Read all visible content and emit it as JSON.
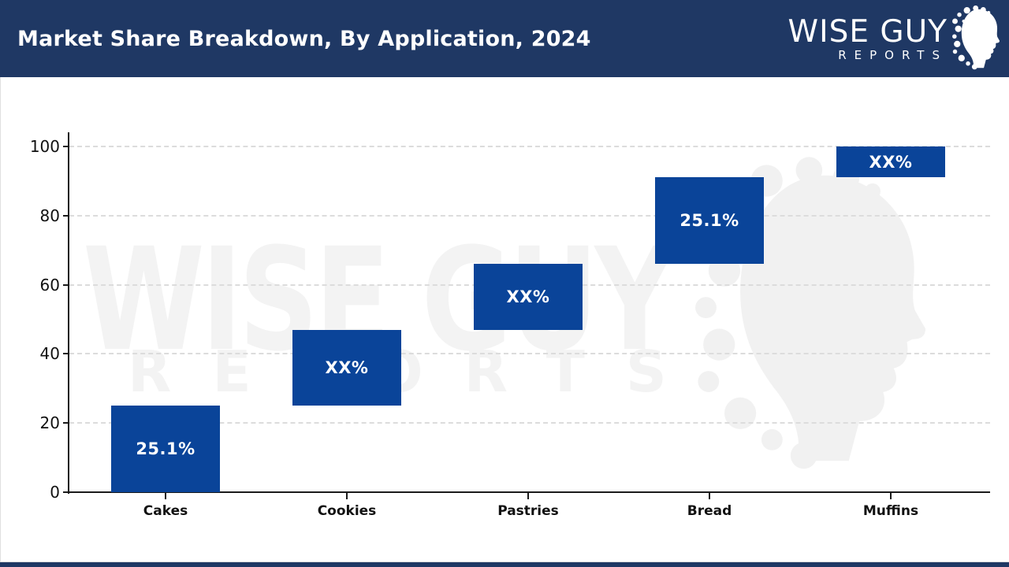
{
  "header": {
    "title": "Market Share Breakdown, By Application, 2024",
    "bg_color": "#1f3864",
    "logo": {
      "wordmark": "WISE GUY",
      "subtext": "REPORTS"
    }
  },
  "watermark": {
    "wordmark": "WISE GUY",
    "subtext": "REPORTS"
  },
  "chart_data": {
    "type": "bar",
    "variant": "floating-waterfall-percentage",
    "title": "Market Share Breakdown, By Application, 2024",
    "categories": [
      "Cakes",
      "Cookies",
      "Pastries",
      "Bread",
      "Muffins"
    ],
    "segments": [
      {
        "category": "Cakes",
        "start": 0,
        "end": 25.1,
        "label": "25.1%"
      },
      {
        "category": "Cookies",
        "start": 25.1,
        "end": 47.0,
        "label": "XX%"
      },
      {
        "category": "Pastries",
        "start": 47.0,
        "end": 66.0,
        "label": "XX%"
      },
      {
        "category": "Bread",
        "start": 66.0,
        "end": 91.1,
        "label": "25.1%"
      },
      {
        "category": "Muffins",
        "start": 91.1,
        "end": 100,
        "label": "XX%"
      }
    ],
    "ylim": [
      0,
      100
    ],
    "yticks": [
      "0",
      "20",
      "40",
      "60",
      "80",
      "100"
    ],
    "grid": "horizontal-dashed",
    "legend": "none",
    "bar_color": "#0a4499",
    "bar_label_color": "#ffffff",
    "axis_color": "#1a1a1a",
    "gridline_color": "#dcdcdc"
  }
}
